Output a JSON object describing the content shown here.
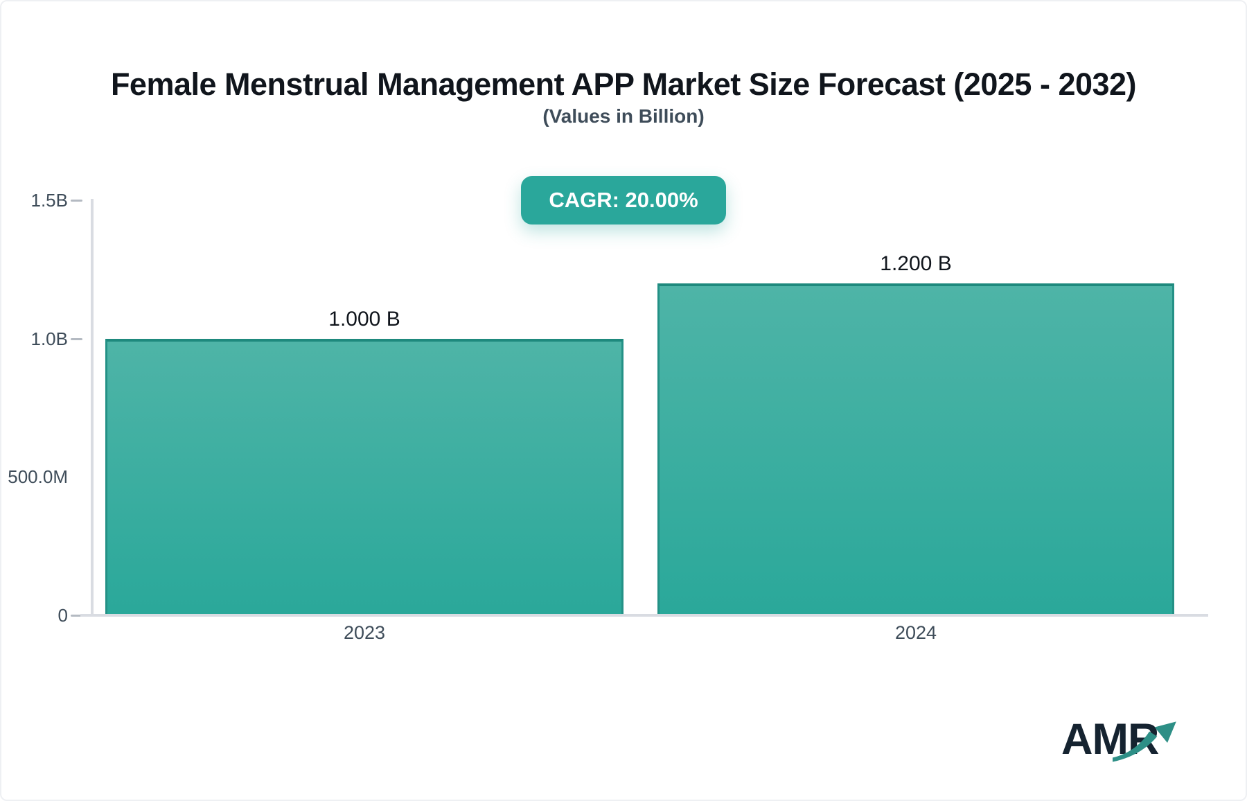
{
  "header": {
    "title": "Female Menstrual Management APP Market Size Forecast (2025 - 2032)",
    "subtitle": "(Values in Billion)",
    "cagr_label": "CAGR: 20.00%"
  },
  "chart_data": {
    "type": "bar",
    "title": "Female Menstrual Management APP Market Size Forecast (2025 - 2032)",
    "subtitle": "(Values in Billion)",
    "categories": [
      "2023",
      "2024"
    ],
    "values": [
      1.0,
      1.2
    ],
    "value_labels": [
      "1.000 B",
      "1.200 B"
    ],
    "cagr": "20.00%",
    "xlabel": "",
    "ylabel": "",
    "ylim": [
      0,
      1.5
    ],
    "grid": false,
    "legend": null,
    "yticks": [
      {
        "label": "1.5B",
        "value": 1.5,
        "tick_mark": true
      },
      {
        "label": "1.0B",
        "value": 1.0,
        "tick_mark": true
      },
      {
        "label": "500.0M",
        "value": 0.5,
        "tick_mark": false
      },
      {
        "label": "0",
        "value": 0.0,
        "tick_mark": true
      }
    ]
  },
  "logo": {
    "text": "AMR",
    "arrow_icon": "trend-up-arrow"
  },
  "colors": {
    "accent": "#2aa79b",
    "badge_text": "#ffffff",
    "bar_gradient_top": "#4eb4a7",
    "bar_gradient_bottom": "#2aa89a",
    "bar_border": "#249186",
    "bar_top_border": "#1e897d",
    "axis_line": "#d9dce2",
    "tick_mark": "#b4bac2",
    "tick_text": "#3e4c59",
    "title_text": "#10151c",
    "value_label_text": "#10151c",
    "logo_text": "#152330",
    "logo_arrow": "#2d8f86"
  }
}
